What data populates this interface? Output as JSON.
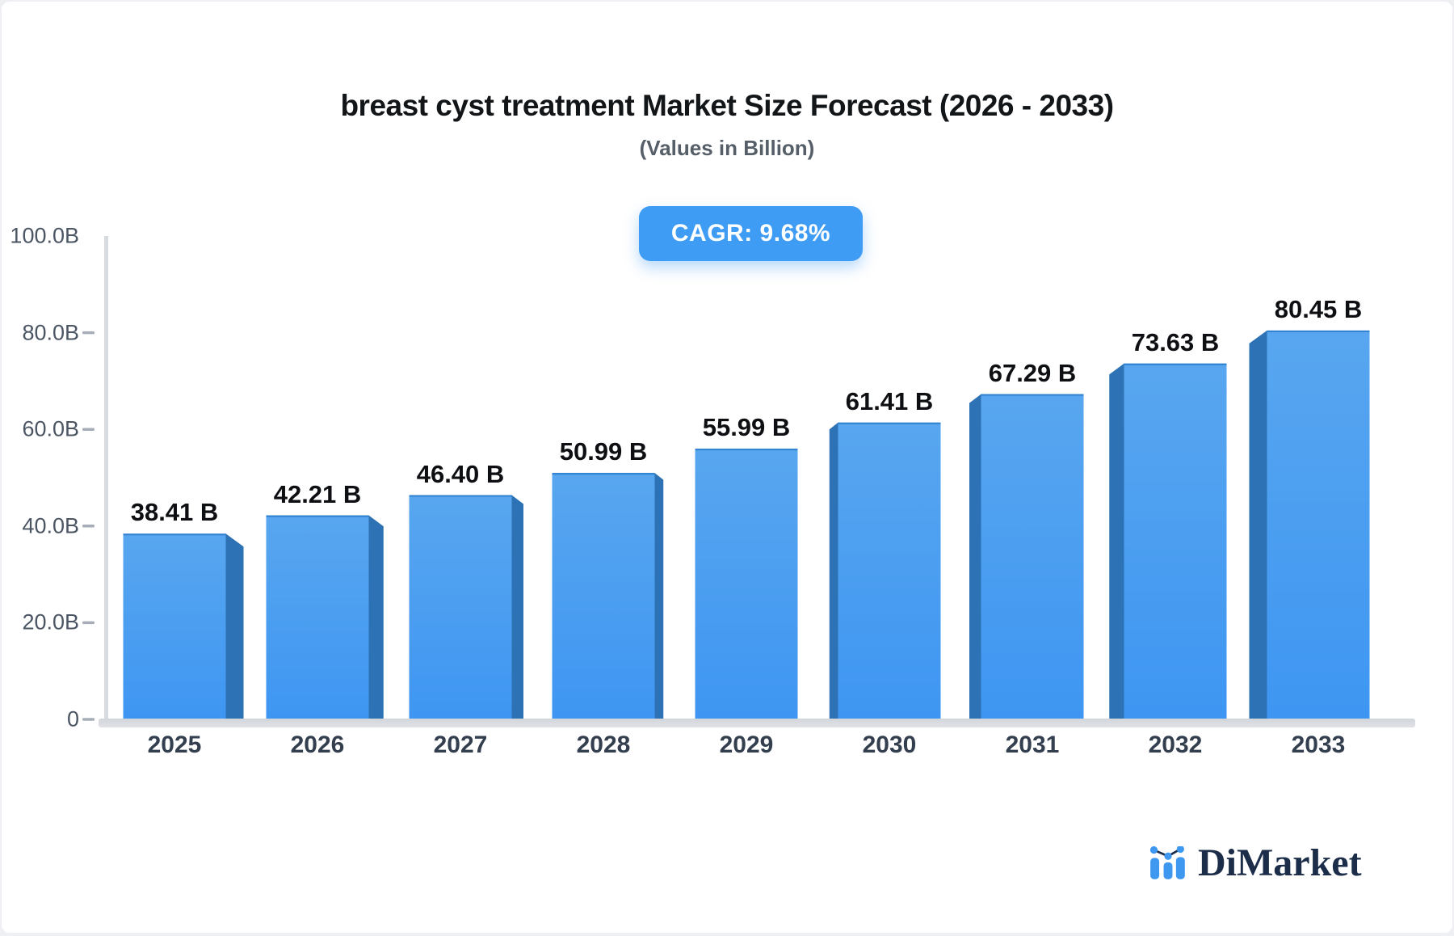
{
  "header": {
    "title": "breast cyst treatment Market Size Forecast (2026 - 2033)",
    "subtitle": "(Values in Billion)",
    "cagr_badge": "CAGR: 9.68%"
  },
  "brand": {
    "name": "DiMarket",
    "icon": "mini-bar-chart-logo-icon"
  },
  "chart_data": {
    "type": "bar",
    "title": "breast cyst treatment Market Size Forecast (2026 - 2033)",
    "subtitle": "(Values in Billion)",
    "categories": [
      "2025",
      "2026",
      "2027",
      "2028",
      "2029",
      "2030",
      "2031",
      "2032",
      "2033"
    ],
    "values": [
      38.41,
      42.21,
      46.4,
      50.99,
      55.99,
      61.41,
      67.29,
      73.63,
      80.45
    ],
    "value_labels": [
      "38.41 B",
      "42.21 B",
      "46.40 B",
      "50.99 B",
      "55.99 B",
      "61.41 B",
      "67.29 B",
      "73.63 B",
      "80.45 B"
    ],
    "xlabel": "",
    "ylabel": "",
    "ylim": [
      0,
      100
    ],
    "y_ticks": [
      {
        "value": 100,
        "label": "100.0B",
        "dash": false
      },
      {
        "value": 80,
        "label": "80.0B",
        "dash": true
      },
      {
        "value": 60,
        "label": "60.0B",
        "dash": true
      },
      {
        "value": 40,
        "label": "40.0B",
        "dash": true
      },
      {
        "value": 20,
        "label": "20.0B",
        "dash": true
      },
      {
        "value": 0,
        "label": "0",
        "dash": true
      }
    ],
    "grid": false,
    "legend": "none",
    "style": "pseudo-3d bars with center-perspective side bevels",
    "colors": {
      "bar_face_top": "#58a6ef",
      "bar_face_bottom": "#3e96f2",
      "bar_top_edge": "#2f80cf",
      "bar_side": "#2d72b4",
      "badge_bg": "#3E9CF4",
      "axis_line": "#d7dade",
      "baseline_top": "#d2d5da",
      "baseline_bottom": "#e0e2e6",
      "tick_dash": "#a6adb6",
      "y_label": "#4b5563",
      "x_label": "#333e4e",
      "value_label": "#0d0f12",
      "brand_text": "#1b2d49",
      "brand_blue": "#3F98F0"
    }
  }
}
